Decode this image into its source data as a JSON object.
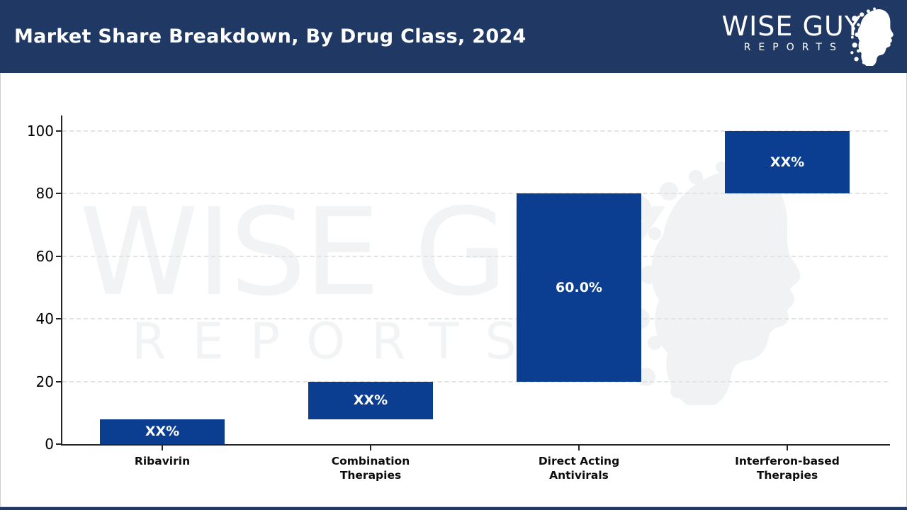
{
  "header": {
    "title": "Market Share Breakdown, By Drug Class, 2024",
    "logo_line1": "WISE GUY",
    "logo_line2": "REPORTS",
    "bg_color": "#1f3864"
  },
  "watermark": {
    "line1": "WISE GUY",
    "line2": "REPORTS"
  },
  "chart_data": {
    "type": "bar",
    "subtype": "floating-segment (waterfall-style market share)",
    "title": "Market Share Breakdown, By Drug Class, 2024",
    "categories": [
      "Ribavirin",
      "Combination\nTherapies",
      "Direct Acting\nAntivirals",
      "Interferon-based\nTherapies"
    ],
    "segments": [
      {
        "category": "Ribavirin",
        "start": 0,
        "end": 8,
        "label": "XX%"
      },
      {
        "category": "Combination Therapies",
        "start": 8,
        "end": 20,
        "label": "XX%"
      },
      {
        "category": "Direct Acting Antivirals",
        "start": 20,
        "end": 80,
        "label": "60.0%"
      },
      {
        "category": "Interferon-based Therapies",
        "start": 80,
        "end": 100,
        "label": "XX%"
      }
    ],
    "yticks": [
      0,
      20,
      40,
      60,
      80,
      100
    ],
    "ylim": [
      0,
      105
    ],
    "xlabel": "",
    "ylabel": "",
    "bar_color": "#0b3d91",
    "grid": "horizontal-dashed",
    "legend": "none"
  }
}
